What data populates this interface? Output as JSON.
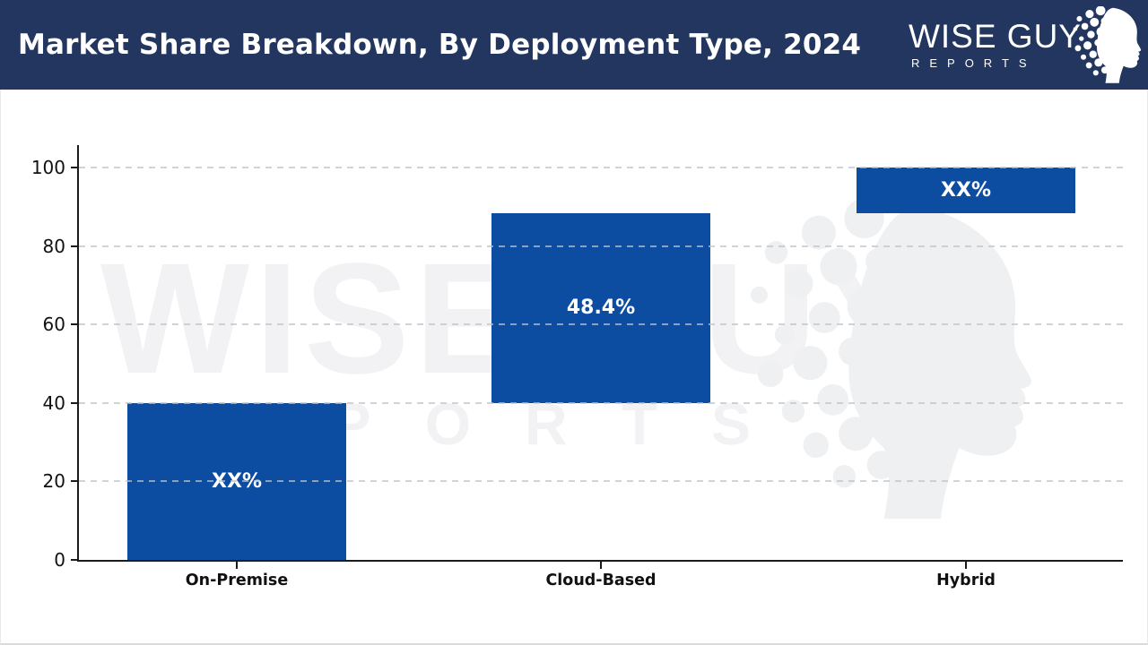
{
  "header": {
    "title": "Market Share Breakdown, By Deployment Type, 2024",
    "bg": "#22365f",
    "logo": {
      "line1": "WISE GUY",
      "line2": "REPORTS"
    }
  },
  "watermark": {
    "line1": "WISE GUY",
    "line2": "REPORTS"
  },
  "chart_data": {
    "type": "bar",
    "subtype": "floating-waterfall",
    "title": "Market Share Breakdown, By Deployment Type, 2024",
    "categories": [
      "On-Premise",
      "Cloud-Based",
      "Hybrid"
    ],
    "segments": [
      {
        "category": "On-Premise",
        "start": 0,
        "end": 40,
        "label": "XX%"
      },
      {
        "category": "Cloud-Based",
        "start": 40,
        "end": 88.4,
        "label": "48.4%"
      },
      {
        "category": "Hybrid",
        "start": 88.4,
        "end": 100,
        "label": "XX%"
      }
    ],
    "ylim": [
      0,
      100
    ],
    "yticks": [
      0,
      20,
      40,
      60,
      80,
      100
    ],
    "grid": "horizontal-dashed",
    "legend": "none",
    "bar_color": "#0d4da1",
    "gridline_color": "#d9d9d9",
    "axis_color": "#1a1a1a"
  }
}
